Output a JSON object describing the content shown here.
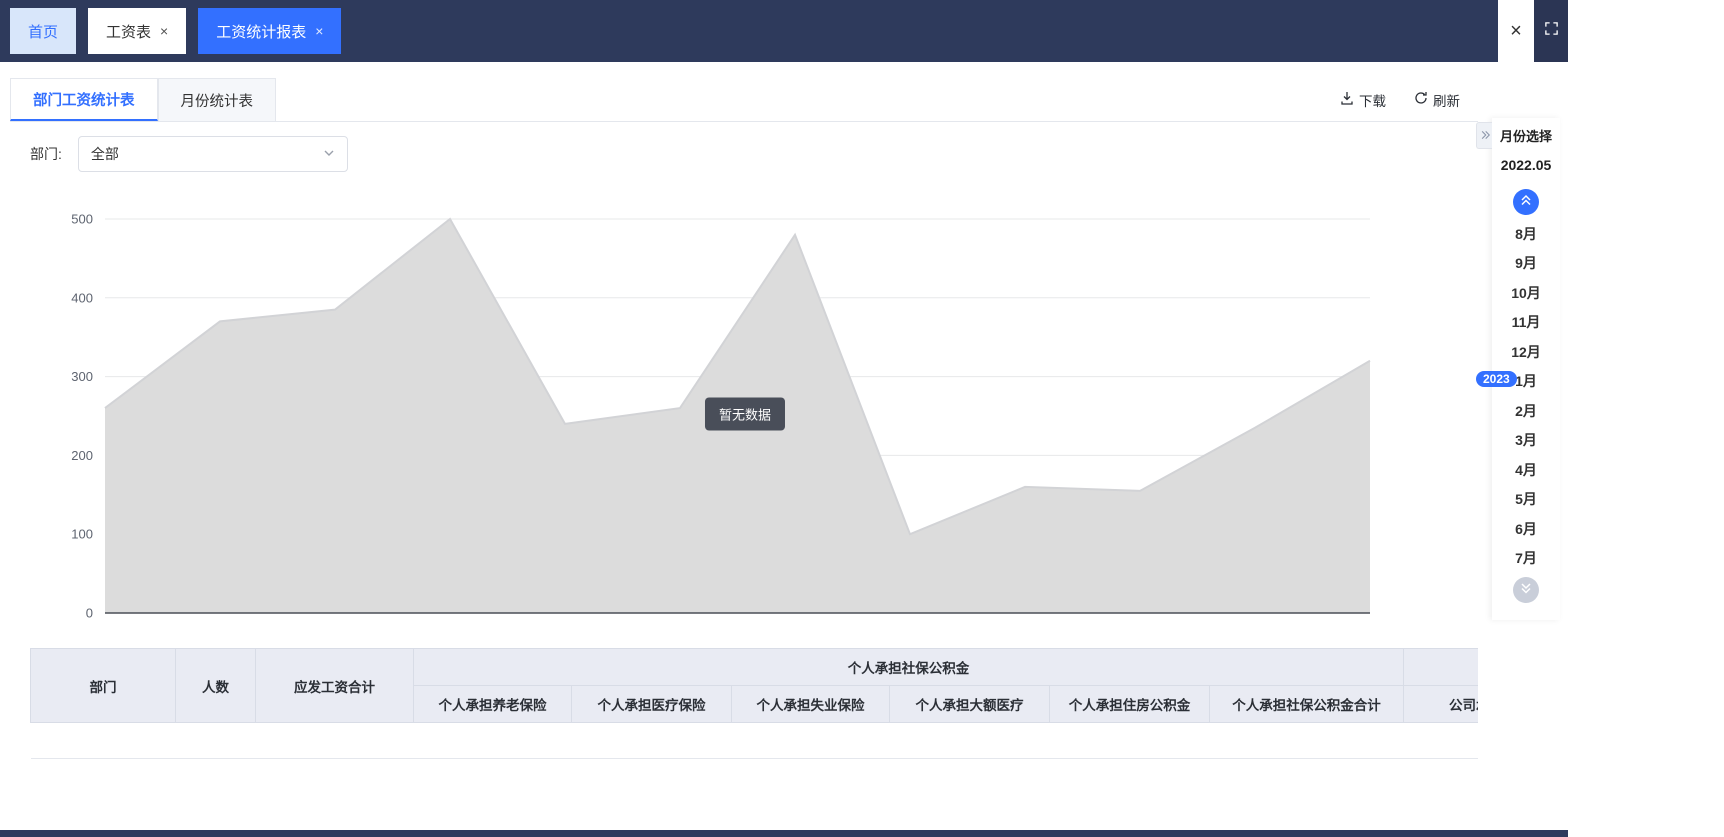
{
  "colors": {
    "topbar_bg": "#2e3a5c",
    "accent": "#3370ff",
    "home_tab_bg": "#d8e6fa",
    "table_header_bg": "#e9ebf3",
    "tooltip_bg": "#3c414d"
  },
  "topbar": {
    "tabs": [
      {
        "label": "首页",
        "closable": false
      },
      {
        "label": "工资表",
        "closable": true
      },
      {
        "label": "工资统计报表",
        "closable": true,
        "active": true
      }
    ],
    "close_glyph": "×"
  },
  "view_tabs": [
    {
      "label": "部门工资统计表",
      "active": true
    },
    {
      "label": "月份统计表",
      "active": false
    }
  ],
  "actions": {
    "download": "下载",
    "refresh": "刷新"
  },
  "filter": {
    "label": "部门:",
    "value": "全部"
  },
  "chart": {
    "no_data": "暂无数据"
  },
  "chart_data": {
    "type": "area",
    "title": "",
    "xlabel": "",
    "ylabel": "",
    "x_labels": [],
    "values": [
      260,
      370,
      385,
      500,
      240,
      260,
      480,
      100,
      160,
      155,
      235,
      320
    ],
    "ylim": [
      0,
      500
    ],
    "yticks": [
      0,
      100,
      200,
      300,
      400,
      500
    ],
    "grid": true,
    "legend": "none",
    "series_color": "#dcdcdc"
  },
  "month_panel": {
    "title": "月份选择",
    "current": "2022.05",
    "months": [
      {
        "label": "8月"
      },
      {
        "label": "9月"
      },
      {
        "label": "10月"
      },
      {
        "label": "11月"
      },
      {
        "label": "12月"
      },
      {
        "label": "1月",
        "year": "2023"
      },
      {
        "label": "2月"
      },
      {
        "label": "3月"
      },
      {
        "label": "4月"
      },
      {
        "label": "5月"
      },
      {
        "label": "6月"
      },
      {
        "label": "7月"
      }
    ]
  },
  "table": {
    "fixed_columns": [
      "部门",
      "人数",
      "应发工资合计"
    ],
    "group_header": "个人承担社保公积金",
    "sub_columns": [
      "个人承担养老保险",
      "个人承担医疗保险",
      "个人承担失业保险",
      "个人承担大额医疗",
      "个人承担住房公积金",
      "个人承担社保公积金合计"
    ],
    "overflow_column": "公司承担"
  }
}
